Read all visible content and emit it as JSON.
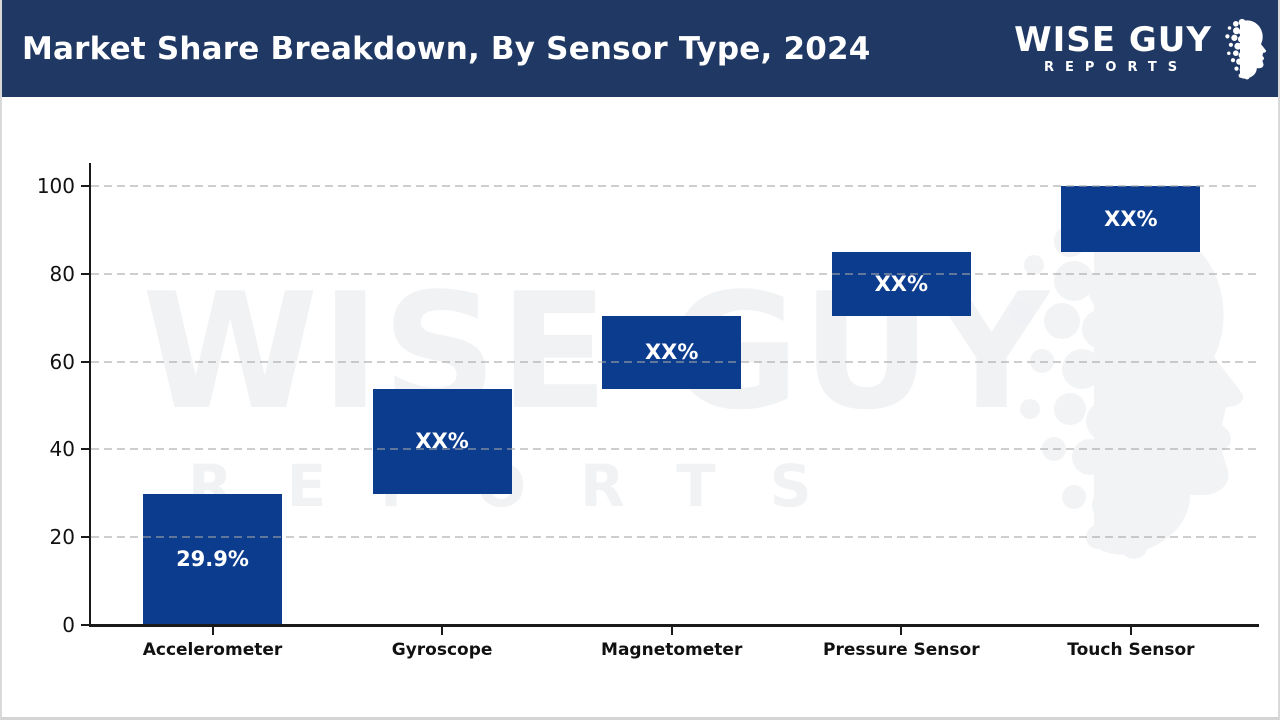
{
  "header": {
    "title": "Market Share Breakdown, By Sensor Type, 2024",
    "bg_color": "#1f3864",
    "logo_line1": "WISE GUY",
    "logo_line2": "REPORTS"
  },
  "watermark": {
    "line1": "WISE GUY",
    "line2": "REPORTS"
  },
  "chart_data": {
    "type": "bar",
    "subtype": "waterfall-floating-segments",
    "title": "Market Share Breakdown, By Sensor Type, 2024",
    "categories": [
      "Accelerometer",
      "Gyroscope",
      "Magnetometer",
      "Pressure Sensor",
      "Touch Sensor"
    ],
    "series": [
      {
        "name": "Market share (%)",
        "segments": [
          {
            "start": 0,
            "end": 29.9,
            "label": "29.9%"
          },
          {
            "start": 29.9,
            "end": 53.8,
            "label": "XX%"
          },
          {
            "start": 53.8,
            "end": 70.4,
            "label": "XX%"
          },
          {
            "start": 70.4,
            "end": 85.0,
            "label": "XX%"
          },
          {
            "start": 85.0,
            "end": 100.0,
            "label": "XX%"
          }
        ]
      }
    ],
    "xlabel": "",
    "ylabel": "",
    "yticks": [
      0,
      20,
      40,
      60,
      80,
      100
    ],
    "ylim": [
      0,
      105
    ],
    "grid": "horizontal-dashed",
    "legend": "none",
    "bar_color": "#0c3c8e",
    "bar_label_color": "#ffffff",
    "axis_color": "#1a1a1a",
    "gridline_color": "#cfcfcf"
  }
}
